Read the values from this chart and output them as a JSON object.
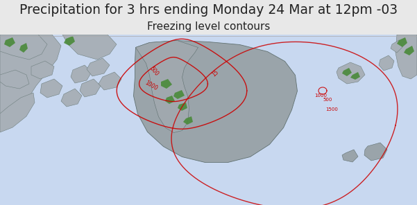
{
  "title_line1": "Precipitation for 3 hrs ending Monday 24 Mar at 12pm -03",
  "title_line2": "Freezing level contours",
  "title_fontsize": 13.5,
  "subtitle_fontsize": 11,
  "title_color": "#222222",
  "header_bg": "#e8e8e8",
  "map_bg": "#c8d8f0",
  "greenland_ice_color": "#9aa4aa",
  "vegetation_color": "#4a8a3a",
  "contour_color": "#cc0000",
  "land_color": "#a8b0b8",
  "figsize": [
    6.01,
    2.96
  ],
  "dpi": 100
}
